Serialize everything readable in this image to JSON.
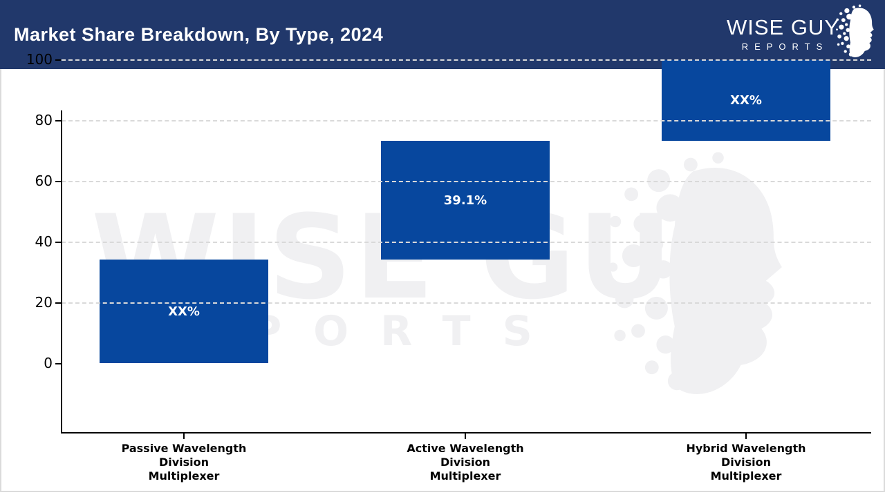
{
  "header": {
    "title": "Market Share Breakdown, By Type, 2024",
    "logo": {
      "line1": "WISE GUY",
      "line2": "REPORTS"
    }
  },
  "watermark": {
    "line1": "WISE GUY",
    "line2": "REPORTS"
  },
  "colors": {
    "header_bg": "#21386B",
    "bar": "#07479E",
    "bar_label": "#FFFFFF",
    "gridline": "#D9D9D9",
    "axis": "#000000",
    "watermark": "#F0F0F2"
  },
  "chart_data": {
    "type": "bar",
    "subtype": "waterfall-stacked-breakdown",
    "title": "Market Share Breakdown, By Type, 2024",
    "categories": [
      [
        "Passive Wavelength",
        "Division",
        "Multiplexer"
      ],
      [
        "Active Wavelength",
        "Division",
        "Multiplexer"
      ],
      [
        "Hybrid Wavelength",
        "Division",
        "Multiplexer"
      ]
    ],
    "segments": [
      {
        "label": "XX%",
        "start": 0,
        "end": 34.2
      },
      {
        "label": "39.1%",
        "start": 34.2,
        "end": 73.3
      },
      {
        "label": "XX%",
        "start": 73.3,
        "end": 100
      }
    ],
    "ylim": [
      0,
      100
    ],
    "yticks": [
      0,
      20,
      40,
      60,
      80,
      100
    ],
    "grid": "horizontal-dashed",
    "legend": "none"
  }
}
